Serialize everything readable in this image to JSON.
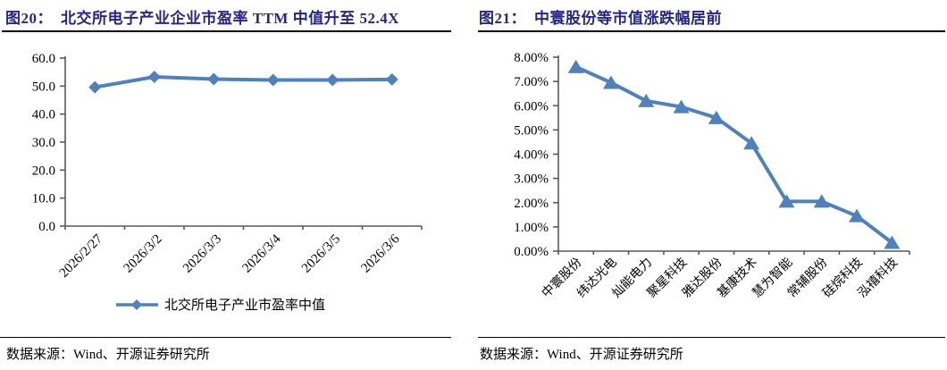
{
  "colors": {
    "title": "#26268A",
    "series": "#4F81BD",
    "axis": "#595959",
    "text": "#000000"
  },
  "left_panel": {
    "title": "图20： 北交所电子产业企业市盈率 TTM 中值升至 52.4X",
    "source": "数据来源：Wind、开源证券研究所"
  },
  "right_panel": {
    "title": "图21： 中寰股份等市值涨跌幅居前",
    "source": "数据来源：Wind、开源证券研究所"
  },
  "chart_data": [
    {
      "type": "line",
      "title": "北交所电子产业企业市盈率TTM中值",
      "categories": [
        "2026/2/27",
        "2026/3/2",
        "2026/3/3",
        "2026/3/4",
        "2026/3/5",
        "2026/3/6"
      ],
      "values": [
        49.6,
        53.3,
        52.5,
        52.2,
        52.2,
        52.4
      ],
      "ylim": [
        0,
        60
      ],
      "ytick_step": 10,
      "ytick_labels": [
        "0.0",
        "10.0",
        "20.0",
        "30.0",
        "40.0",
        "50.0",
        "60.0"
      ],
      "xlabel": "",
      "ylabel": "",
      "grid": false,
      "marker": "diamond",
      "legend": [
        "北交所电子产业市盈率中值"
      ],
      "legend_position": "bottom"
    },
    {
      "type": "line",
      "title": "市值涨跌幅居前个股",
      "categories": [
        "中寰股份",
        "纬达光电",
        "灿能电力",
        "聚星科技",
        "雅达股份",
        "基康技术",
        "慧为智能",
        "常辅股份",
        "硅烷科技",
        "泓禧科技"
      ],
      "values": [
        7.6,
        6.95,
        6.2,
        5.95,
        5.5,
        4.45,
        2.05,
        2.05,
        1.45,
        0.35
      ],
      "unit": "%",
      "ylim": [
        0,
        8
      ],
      "ytick_step": 1,
      "ytick_labels": [
        "0.00%",
        "1.00%",
        "2.00%",
        "3.00%",
        "4.00%",
        "5.00%",
        "6.00%",
        "7.00%",
        "8.00%"
      ],
      "xlabel": "",
      "ylabel": "",
      "grid": false,
      "marker": "triangle",
      "legend": [],
      "legend_position": "none"
    }
  ]
}
